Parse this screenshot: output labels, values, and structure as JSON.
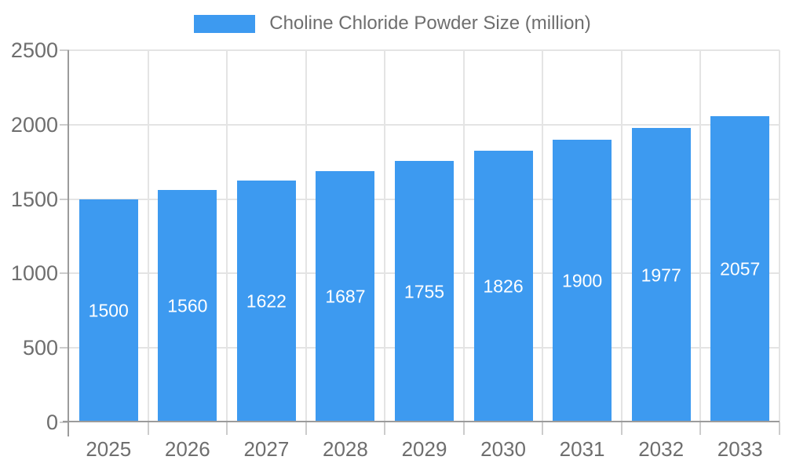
{
  "chart_data": {
    "type": "bar",
    "title": "Choline Chloride Powder Size (million)",
    "legend_position": "top",
    "categories": [
      "2025",
      "2026",
      "2027",
      "2028",
      "2029",
      "2030",
      "2031",
      "2032",
      "2033"
    ],
    "values": [
      1500,
      1560,
      1622,
      1687,
      1755,
      1826,
      1900,
      1977,
      2057
    ],
    "xlabel": "",
    "ylabel": "",
    "ylim": [
      0,
      2500
    ],
    "yticks": [
      0,
      500,
      1000,
      1500,
      2000,
      2500
    ],
    "grid": true,
    "colors": {
      "bar": "#3d9af0",
      "bar_label_text": "#ffffff",
      "axis_text": "#6e6e6e",
      "grid_line": "#e4e4e4",
      "axis_line": "#9b9b9b",
      "tick_line": "#cccccc",
      "background": "#ffffff"
    }
  }
}
